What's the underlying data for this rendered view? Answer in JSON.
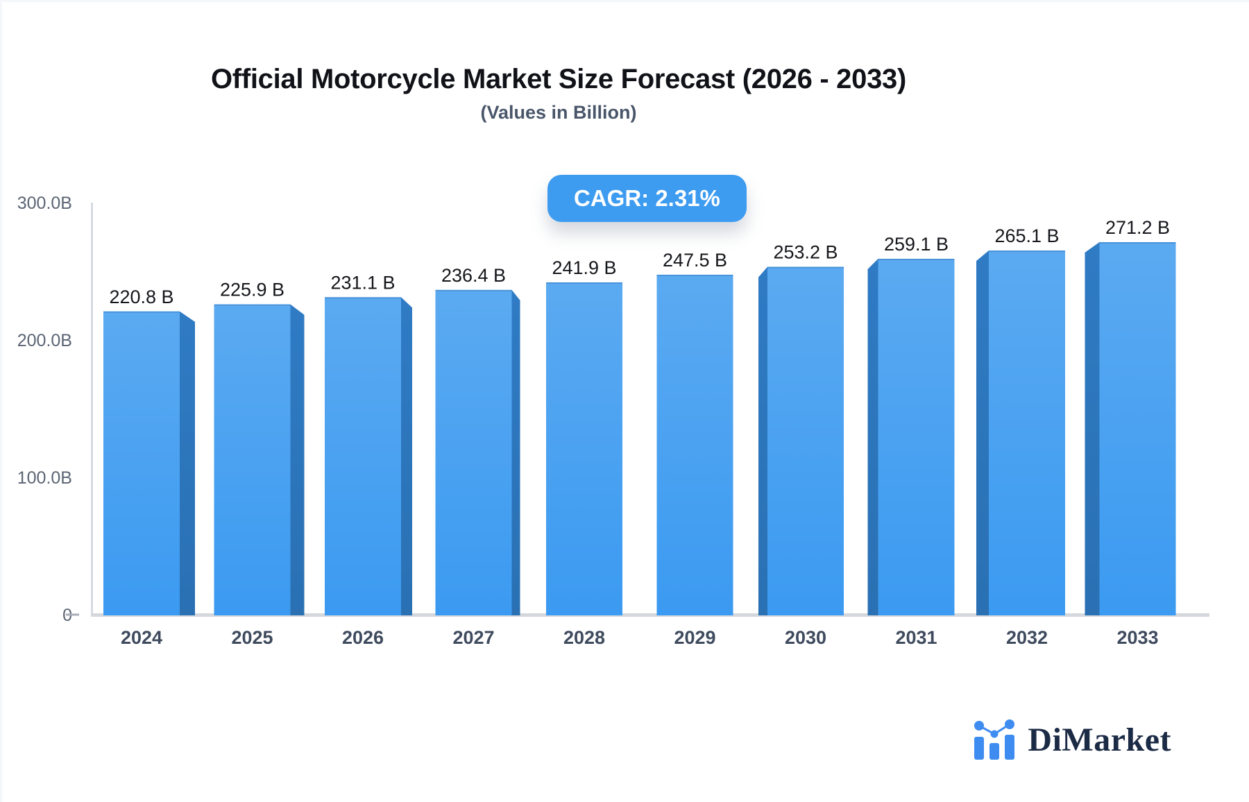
{
  "title": "Official Motorcycle Market Size Forecast (2026 - 2033)",
  "subtitle": "(Values in Billion)",
  "cagr_badge": "CAGR: 2.31%",
  "chart_data": {
    "type": "bar",
    "title": "Official Motorcycle Market Size Forecast (2026 - 2033)",
    "subtitle": "(Values in Billion)",
    "categories": [
      "2024",
      "2025",
      "2026",
      "2027",
      "2028",
      "2029",
      "2030",
      "2031",
      "2032",
      "2033"
    ],
    "values": [
      220.8,
      225.9,
      231.1,
      236.4,
      241.9,
      247.5,
      253.2,
      259.1,
      265.1,
      271.2
    ],
    "bar_labels": [
      "220.8 B",
      "225.9 B",
      "231.1 B",
      "236.4 B",
      "241.9 B",
      "247.5 B",
      "253.2 B",
      "259.1 B",
      "265.1 B",
      "271.2 B"
    ],
    "units": "Billion",
    "cagr": "2.31%",
    "xlabel": "",
    "ylabel": "",
    "ylim": [
      0,
      300
    ],
    "yticks": [
      {
        "label": "300.0B",
        "value": 300
      },
      {
        "label": "200.0B",
        "value": 200
      },
      {
        "label": "100.0B",
        "value": 100
      },
      {
        "label": "0",
        "value": 0
      }
    ],
    "grid": false,
    "legend": false,
    "bar_style": "3d-extruded-perspective"
  },
  "logo": {
    "brand": "DiMarket",
    "mark": "mini-bar-chart-with-trendline-icon"
  },
  "colors": {
    "bar_face_top": "#5BAAF1",
    "bar_face_bottom": "#3B9AF1",
    "bar_top_edge": "#4a93d9",
    "bar_side": "#2C74BA",
    "badge_bg": "#3D9BF0",
    "badge_text": "#ffffff",
    "axis_line": "#D6DAE0",
    "baseline": "#D4D8DD",
    "tick_dash": "#A7ADB6",
    "ytick_text": "#5b6574",
    "xtick_text": "#3e4a5d",
    "value_text": "#14161a",
    "title_text": "#101218",
    "subtitle_text": "#49566a",
    "logo_blue": "#3E8CF0",
    "logo_navy": "#1c2b45"
  }
}
